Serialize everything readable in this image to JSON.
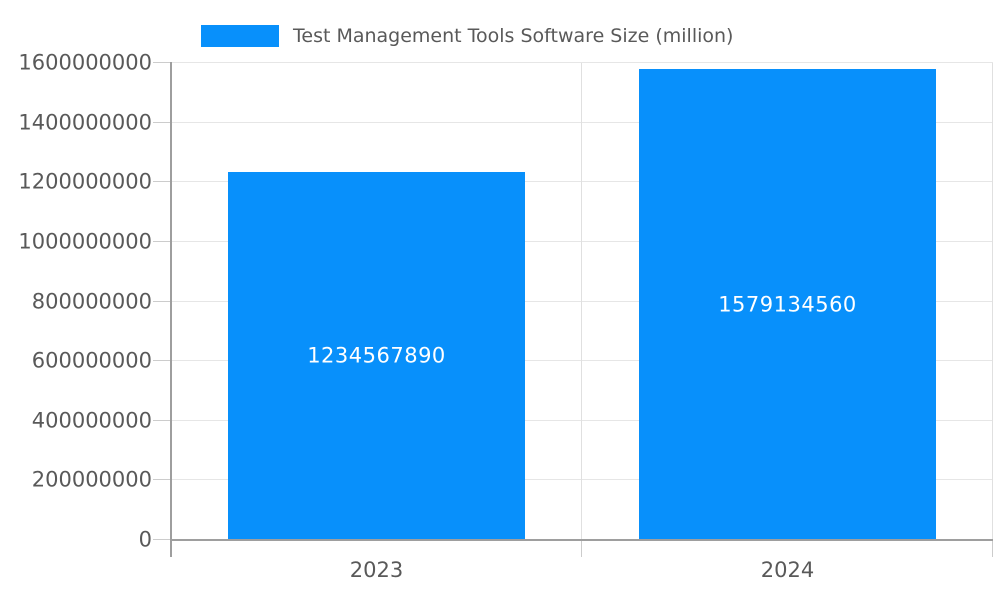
{
  "chart_data": {
    "type": "bar",
    "title": "Test Management Tools Software Size (million)",
    "categories": [
      "2023",
      "2024"
    ],
    "series": [
      {
        "name": "Test Management Tools Software Size (million)",
        "values": [
          1234567890,
          1579134560
        ]
      }
    ],
    "bar_value_labels": [
      "1234567890",
      "1579134560"
    ],
    "xlabel": "",
    "ylabel": "",
    "ylim": [
      0,
      1600000000
    ],
    "ytick_interval": 200000000,
    "ytick_labels": [
      "0",
      "200000000",
      "400000000",
      "600000000",
      "800000000",
      "1000000000",
      "1200000000",
      "1400000000",
      "1600000000"
    ],
    "grid": "on",
    "legend_position": "top",
    "colors": {
      "bar": "#0890FB",
      "bar_value_label": "#FFFFFF",
      "axis_label": "#595959",
      "legend_label": "#595959",
      "gridline": "#E6E6E6",
      "category_divider": "#E0E0E0",
      "plot_right_border": "#E0E0E0",
      "axis_line": "#9E9E9E",
      "outer_tick": "#CCCCCC",
      "background": "#FFFFFF"
    }
  }
}
